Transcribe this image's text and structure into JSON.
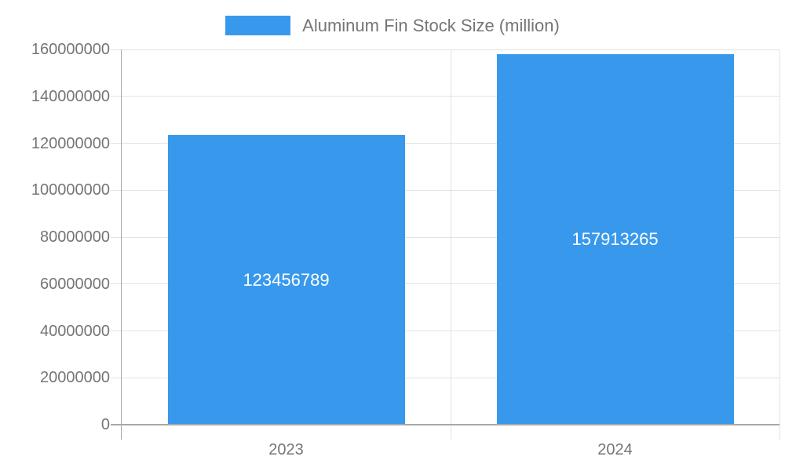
{
  "chart": {
    "colors": {
      "bar": "#3899EC",
      "grid": "#E3E3E3",
      "axis": "#A8A8A8",
      "baseline": "#A8A8A8",
      "text": "#757575",
      "bar_label_text": "#FFFFFF"
    }
  },
  "chart_data": {
    "type": "bar",
    "title": "Aluminum Fin Stock Size (million)",
    "categories": [
      "2023",
      "2024"
    ],
    "values": [
      123456789,
      157913265
    ],
    "data_labels": [
      "123456789",
      "157913265"
    ],
    "xlabel": "",
    "ylabel": "",
    "ylim": [
      0,
      160000000
    ],
    "ytick_interval": 20000000,
    "ytick_labels": [
      "0",
      "20000000",
      "40000000",
      "60000000",
      "80000000",
      "100000000",
      "120000000",
      "140000000",
      "160000000"
    ],
    "grid": true,
    "legend": {
      "position": "top",
      "entries": [
        "Aluminum Fin Stock Size (million)"
      ]
    }
  }
}
